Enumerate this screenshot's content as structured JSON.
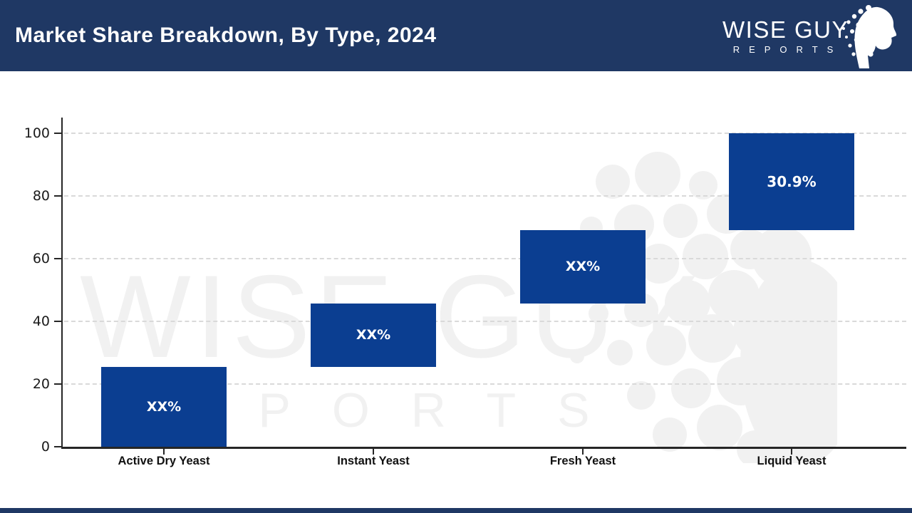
{
  "header": {
    "title": "Market Share Breakdown, By Type, 2024",
    "logo": {
      "line1": "WISE GUY",
      "line2": "REPORTS"
    }
  },
  "watermark": {
    "line1": "WISE GUY",
    "line2": "REPORTS"
  },
  "chart_data": {
    "type": "bar",
    "subtype": "floating-waterfall-segments",
    "title": "Market Share Breakdown, By Type, 2024",
    "categories": [
      "Active Dry Yeast",
      "Instant Yeast",
      "Fresh Yeast",
      "Liquid Yeast"
    ],
    "segments": [
      {
        "category": "Active Dry Yeast",
        "start": 0,
        "end": 25.5,
        "value": 25.5,
        "label": "XX%"
      },
      {
        "category": "Instant Yeast",
        "start": 25.5,
        "end": 45.7,
        "value": 20.2,
        "label": "XX%"
      },
      {
        "category": "Fresh Yeast",
        "start": 45.7,
        "end": 69.1,
        "value": 23.4,
        "label": "XX%"
      },
      {
        "category": "Liquid Yeast",
        "start": 69.1,
        "end": 100,
        "value": 30.9,
        "label": "30.9%"
      }
    ],
    "xlabel": "",
    "ylabel": "",
    "ylim": [
      0,
      105
    ],
    "yticks": [
      0,
      20,
      40,
      60,
      80,
      100
    ],
    "grid": "horizontal-dashed",
    "legend": "none",
    "bar_color": "#0b3e91",
    "bar_label_color": "#ffffff",
    "axis_color": "#262626",
    "grid_color": "#d9d9d9",
    "header_color": "#1f3864",
    "watermark_color": "#f1f1f1"
  }
}
